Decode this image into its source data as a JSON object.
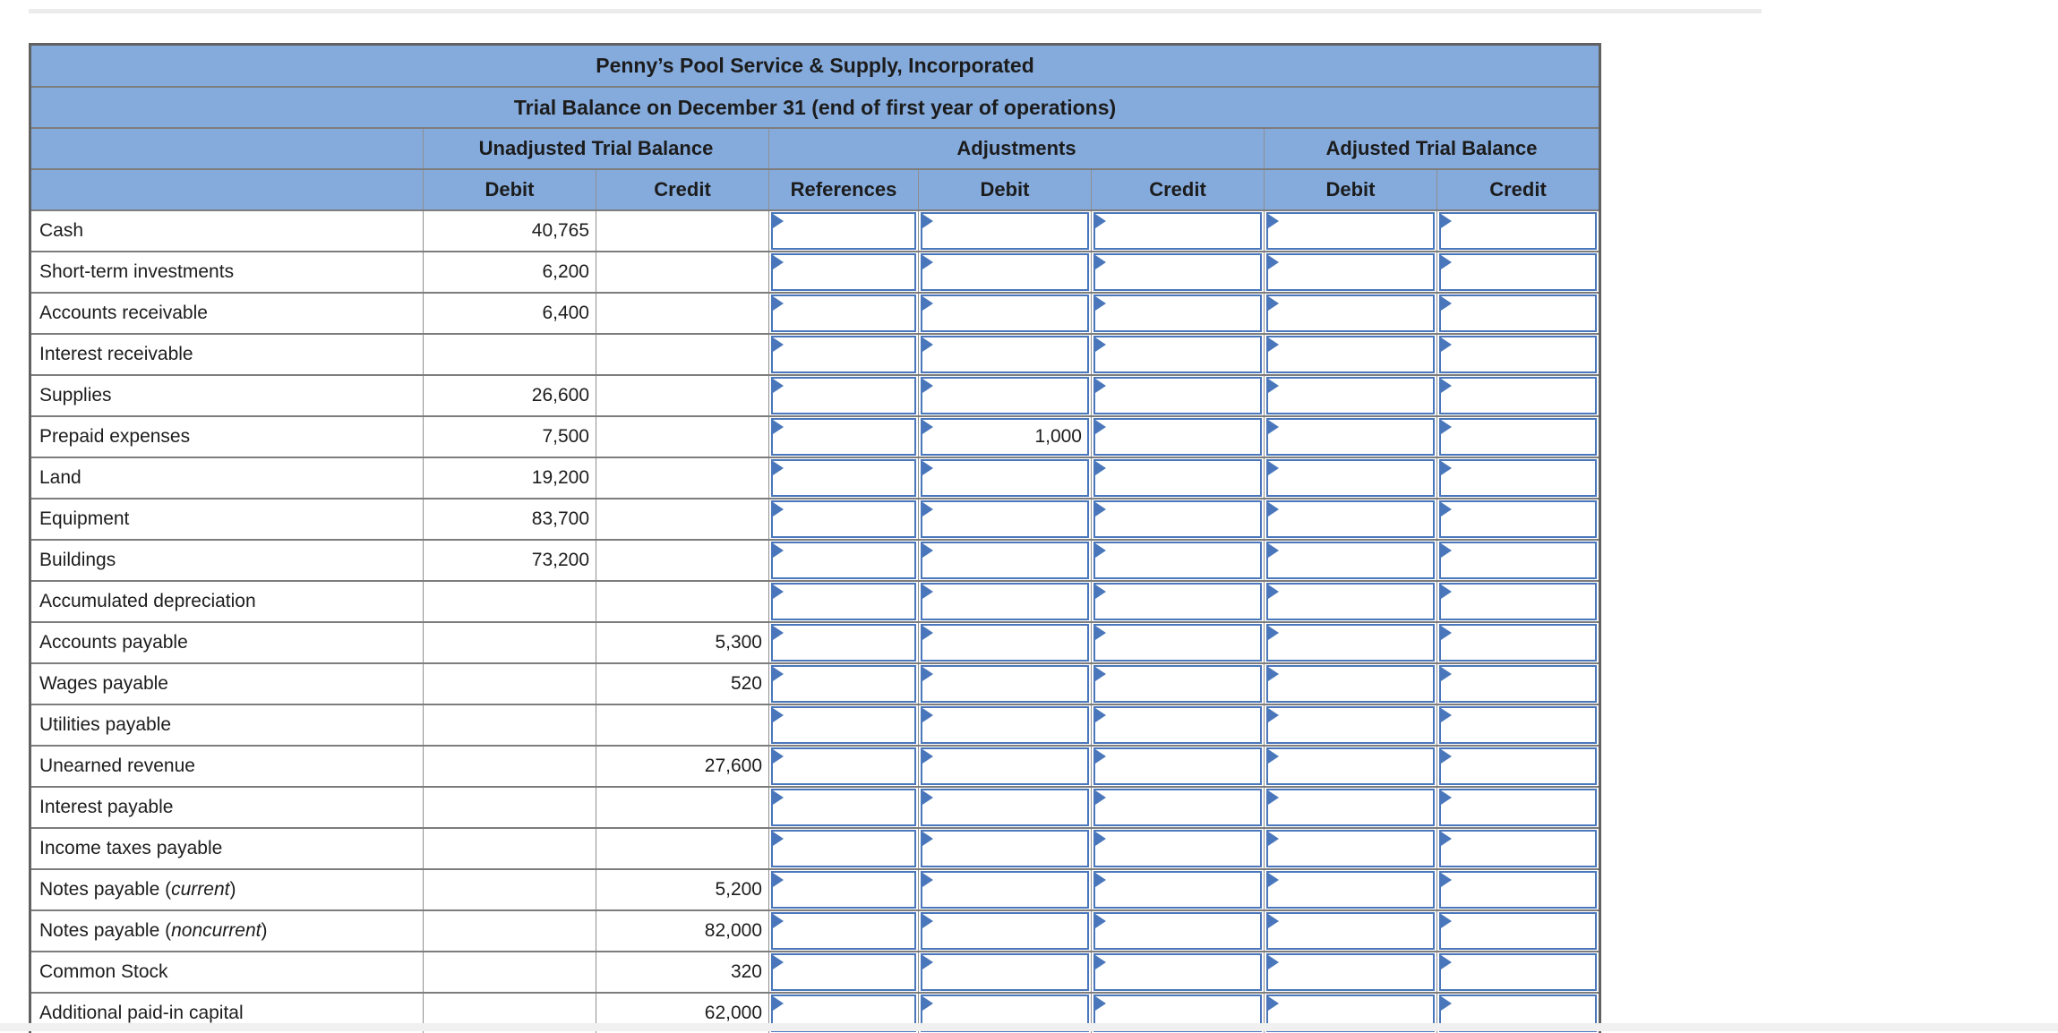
{
  "page": {
    "top_divider_color": "#ececec",
    "bottom_strip_color": "#f0f0f0",
    "background": "#ffffff"
  },
  "colors": {
    "header_bg": "#85abdd",
    "outer_border": "#616161",
    "grid_line": "#7d7d7d",
    "column_line": "#8f8f8f",
    "input_border": "#4a77bb",
    "flag": "#4a77bb",
    "text": "#1d1d1d"
  },
  "icons": {
    "input_flag": "right-triangle-flag-icon"
  },
  "table": {
    "title": "Penny’s Pool Service & Supply, Incorporated",
    "subtitle": "Trial Balance on December 31 (end of first year of operations)",
    "column_groups": [
      {
        "label": "Unadjusted Trial Balance",
        "columns": [
          "Debit",
          "Credit"
        ]
      },
      {
        "label": "Adjustments",
        "columns": [
          "References",
          "Debit",
          "Credit"
        ]
      },
      {
        "label": "Adjusted Trial Balance",
        "columns": [
          "Debit",
          "Credit"
        ]
      }
    ],
    "rows": [
      {
        "account_prefix": "Cash",
        "account_italic": "",
        "account_suffix": "",
        "unadjusted_debit": "40,765",
        "unadjusted_credit": "",
        "adj_references": "",
        "adj_debit": "",
        "adj_credit": "",
        "atb_debit": "",
        "atb_credit": ""
      },
      {
        "account_prefix": "Short-term investments",
        "account_italic": "",
        "account_suffix": "",
        "unadjusted_debit": "6,200",
        "unadjusted_credit": "",
        "adj_references": "",
        "adj_debit": "",
        "adj_credit": "",
        "atb_debit": "",
        "atb_credit": ""
      },
      {
        "account_prefix": "Accounts receivable",
        "account_italic": "",
        "account_suffix": "",
        "unadjusted_debit": "6,400",
        "unadjusted_credit": "",
        "adj_references": "",
        "adj_debit": "",
        "adj_credit": "",
        "atb_debit": "",
        "atb_credit": ""
      },
      {
        "account_prefix": "Interest receivable",
        "account_italic": "",
        "account_suffix": "",
        "unadjusted_debit": "",
        "unadjusted_credit": "",
        "adj_references": "",
        "adj_debit": "",
        "adj_credit": "",
        "atb_debit": "",
        "atb_credit": ""
      },
      {
        "account_prefix": "Supplies",
        "account_italic": "",
        "account_suffix": "",
        "unadjusted_debit": "26,600",
        "unadjusted_credit": "",
        "adj_references": "",
        "adj_debit": "",
        "adj_credit": "",
        "atb_debit": "",
        "atb_credit": ""
      },
      {
        "account_prefix": "Prepaid expenses",
        "account_italic": "",
        "account_suffix": "",
        "unadjusted_debit": "7,500",
        "unadjusted_credit": "",
        "adj_references": "",
        "adj_debit": "1,000",
        "adj_credit": "",
        "atb_debit": "",
        "atb_credit": ""
      },
      {
        "account_prefix": "Land",
        "account_italic": "",
        "account_suffix": "",
        "unadjusted_debit": "19,200",
        "unadjusted_credit": "",
        "adj_references": "",
        "adj_debit": "",
        "adj_credit": "",
        "atb_debit": "",
        "atb_credit": ""
      },
      {
        "account_prefix": "Equipment",
        "account_italic": "",
        "account_suffix": "",
        "unadjusted_debit": "83,700",
        "unadjusted_credit": "",
        "adj_references": "",
        "adj_debit": "",
        "adj_credit": "",
        "atb_debit": "",
        "atb_credit": ""
      },
      {
        "account_prefix": "Buildings",
        "account_italic": "",
        "account_suffix": "",
        "unadjusted_debit": "73,200",
        "unadjusted_credit": "",
        "adj_references": "",
        "adj_debit": "",
        "adj_credit": "",
        "atb_debit": "",
        "atb_credit": ""
      },
      {
        "account_prefix": "Accumulated depreciation",
        "account_italic": "",
        "account_suffix": "",
        "unadjusted_debit": "",
        "unadjusted_credit": "",
        "adj_references": "",
        "adj_debit": "",
        "adj_credit": "",
        "atb_debit": "",
        "atb_credit": ""
      },
      {
        "account_prefix": "Accounts payable",
        "account_italic": "",
        "account_suffix": "",
        "unadjusted_debit": "",
        "unadjusted_credit": "5,300",
        "adj_references": "",
        "adj_debit": "",
        "adj_credit": "",
        "atb_debit": "",
        "atb_credit": ""
      },
      {
        "account_prefix": "Wages payable",
        "account_italic": "",
        "account_suffix": "",
        "unadjusted_debit": "",
        "unadjusted_credit": "520",
        "adj_references": "",
        "adj_debit": "",
        "adj_credit": "",
        "atb_debit": "",
        "atb_credit": ""
      },
      {
        "account_prefix": "Utilities payable",
        "account_italic": "",
        "account_suffix": "",
        "unadjusted_debit": "",
        "unadjusted_credit": "",
        "adj_references": "",
        "adj_debit": "",
        "adj_credit": "",
        "atb_debit": "",
        "atb_credit": ""
      },
      {
        "account_prefix": "Unearned revenue",
        "account_italic": "",
        "account_suffix": "",
        "unadjusted_debit": "",
        "unadjusted_credit": "27,600",
        "adj_references": "",
        "adj_debit": "",
        "adj_credit": "",
        "atb_debit": "",
        "atb_credit": ""
      },
      {
        "account_prefix": "Interest payable",
        "account_italic": "",
        "account_suffix": "",
        "unadjusted_debit": "",
        "unadjusted_credit": "",
        "adj_references": "",
        "adj_debit": "",
        "adj_credit": "",
        "atb_debit": "",
        "atb_credit": ""
      },
      {
        "account_prefix": "Income taxes payable",
        "account_italic": "",
        "account_suffix": "",
        "unadjusted_debit": "",
        "unadjusted_credit": "",
        "adj_references": "",
        "adj_debit": "",
        "adj_credit": "",
        "atb_debit": "",
        "atb_credit": ""
      },
      {
        "account_prefix": "Notes payable (",
        "account_italic": "current",
        "account_suffix": ")",
        "unadjusted_debit": "",
        "unadjusted_credit": "5,200",
        "adj_references": "",
        "adj_debit": "",
        "adj_credit": "",
        "atb_debit": "",
        "atb_credit": ""
      },
      {
        "account_prefix": "Notes payable (",
        "account_italic": "noncurrent",
        "account_suffix": ")",
        "unadjusted_debit": "",
        "unadjusted_credit": "82,000",
        "adj_references": "",
        "adj_debit": "",
        "adj_credit": "",
        "atb_debit": "",
        "atb_credit": ""
      },
      {
        "account_prefix": "Common Stock",
        "account_italic": "",
        "account_suffix": "",
        "unadjusted_debit": "",
        "unadjusted_credit": "320",
        "adj_references": "",
        "adj_debit": "",
        "adj_credit": "",
        "atb_debit": "",
        "atb_credit": ""
      },
      {
        "account_prefix": "Additional paid-in capital",
        "account_italic": "",
        "account_suffix": "",
        "unadjusted_debit": "",
        "unadjusted_credit": "62,000",
        "adj_references": "",
        "adj_debit": "",
        "adj_credit": "",
        "atb_debit": "",
        "atb_credit": ""
      }
    ]
  }
}
